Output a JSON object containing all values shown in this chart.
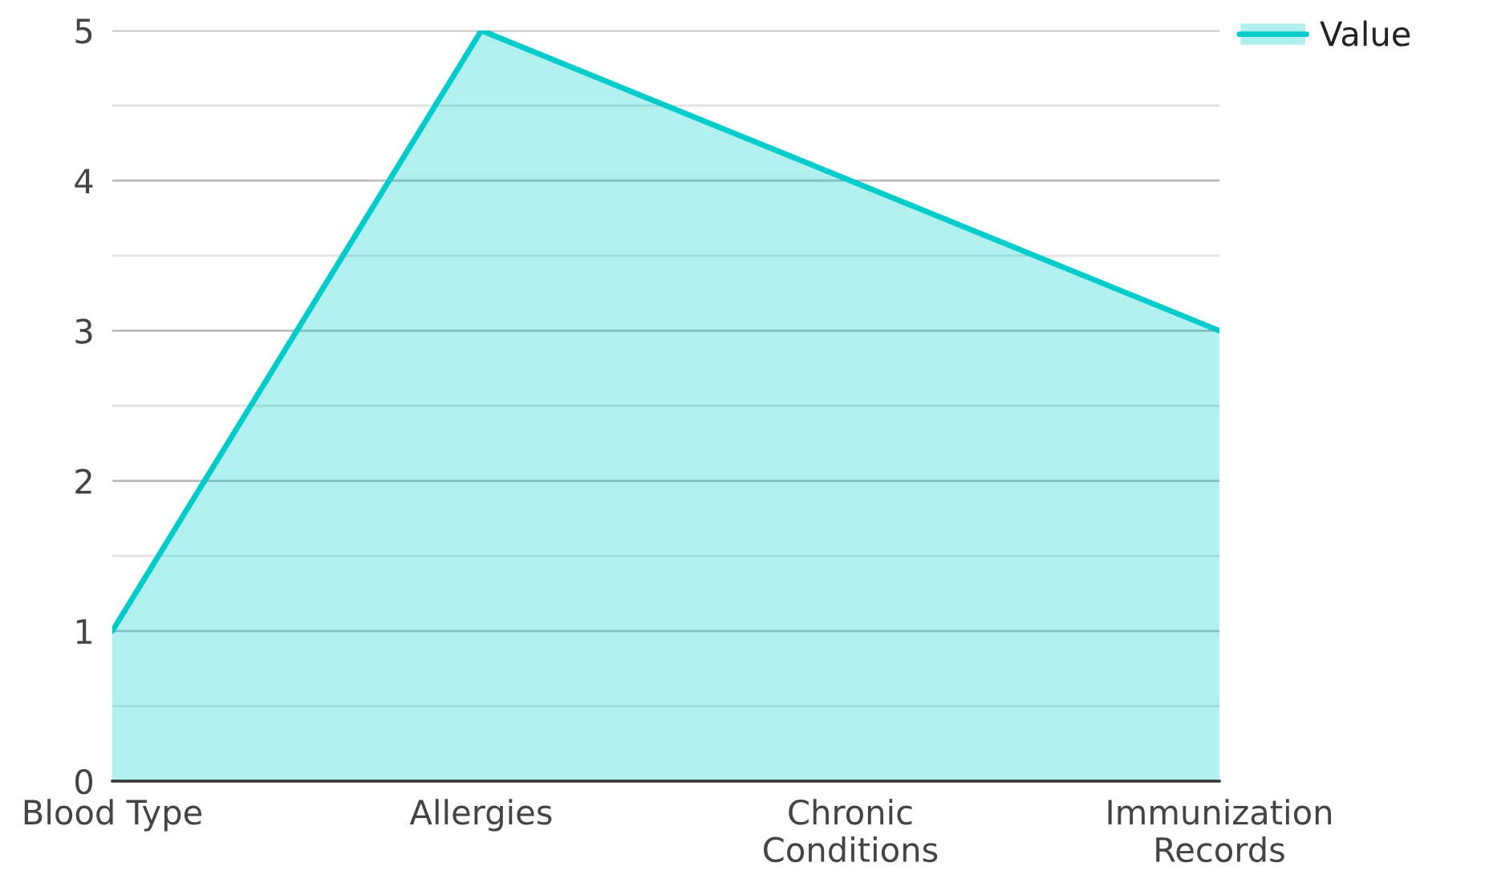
{
  "chart_data": {
    "type": "area",
    "categories": [
      "Blood Type",
      "Allergies",
      "Chronic Conditions",
      "Immunization Records"
    ],
    "series": [
      {
        "name": "Value",
        "color": "#00cccc",
        "values": [
          1,
          5,
          4,
          3
        ]
      }
    ],
    "ylim": [
      0,
      5
    ],
    "yticks": [
      0,
      {
        "value": 0.5,
        "label": null
      },
      1,
      {
        "value": 1.5,
        "label": null
      },
      2,
      {
        "value": 2.5,
        "label": null
      },
      3,
      {
        "value": 3.5,
        "label": null
      },
      4,
      {
        "value": 4.5,
        "label": null
      },
      5
    ],
    "grid": "y",
    "legend": "top right"
  }
}
